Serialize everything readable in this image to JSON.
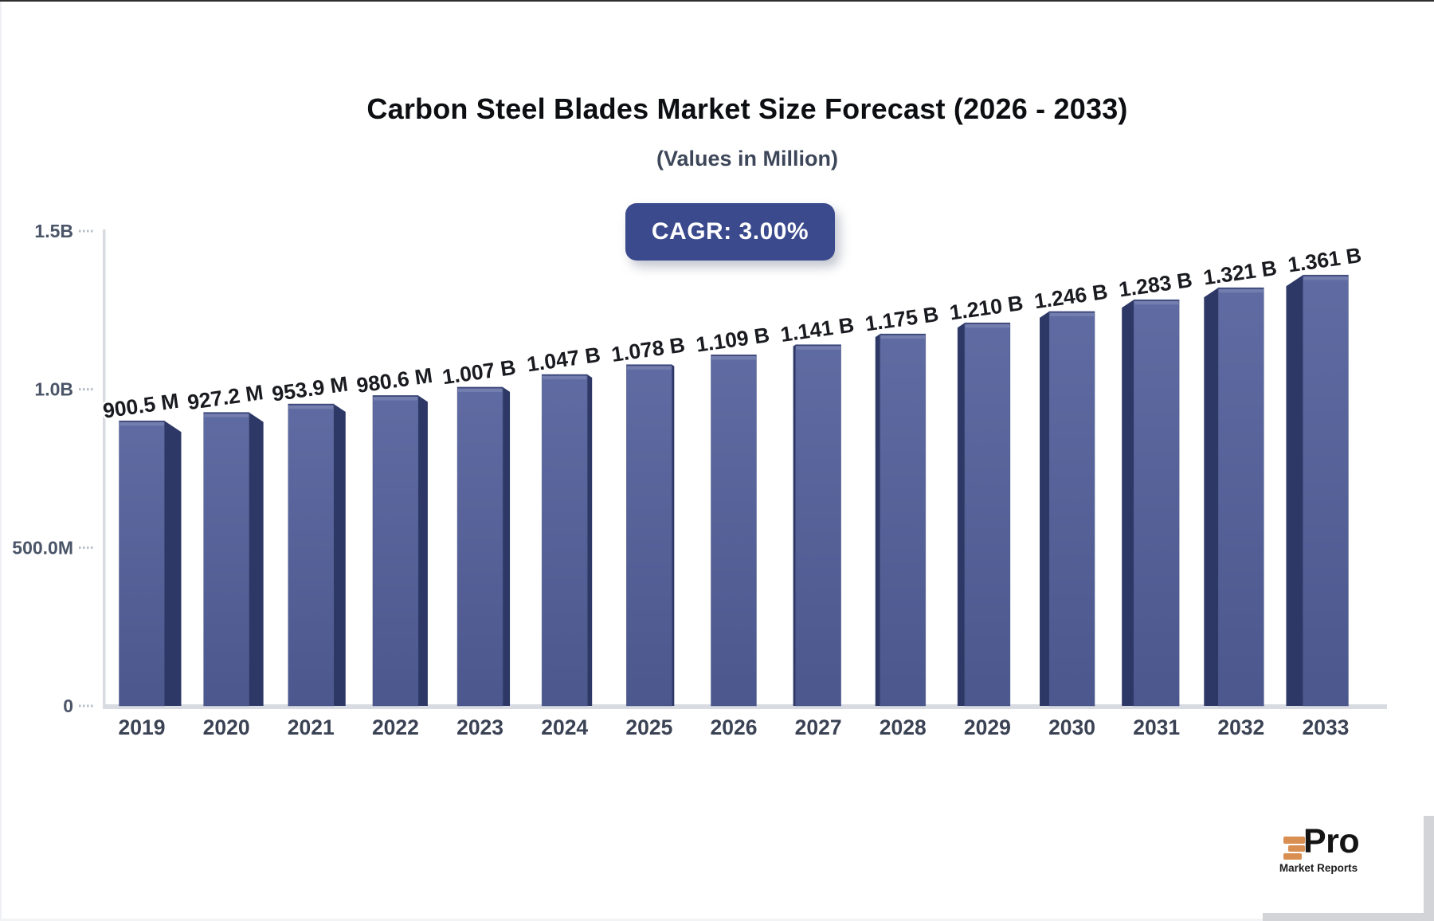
{
  "header": {
    "title": "Carbon Steel Blades Market Size Forecast (2026 - 2033)",
    "subtitle": "(Values in Million)",
    "cagr_label": "CAGR: 3.00%"
  },
  "chart_data": {
    "type": "bar",
    "title": "Carbon Steel Blades Market Size Forecast (2026 - 2033)",
    "subtitle": "(Values in Million)",
    "cagr": "3.00%",
    "categories": [
      "2019",
      "2020",
      "2021",
      "2022",
      "2023",
      "2024",
      "2025",
      "2026",
      "2027",
      "2028",
      "2029",
      "2030",
      "2031",
      "2032",
      "2033"
    ],
    "values_in_millions": [
      900.5,
      927.2,
      953.9,
      980.6,
      1007,
      1047,
      1078,
      1109,
      1141,
      1175,
      1210,
      1246,
      1283,
      1321,
      1361
    ],
    "bar_labels": [
      "900.5 M",
      "927.2 M",
      "953.9 M",
      "980.6 M",
      "1.007 B",
      "1.047 B",
      "1.078 B",
      "1.109 B",
      "1.141 B",
      "1.175 B",
      "1.210 B",
      "1.246 B",
      "1.283 B",
      "1.321 B",
      "1.361 B"
    ],
    "y_axis": {
      "min": 0,
      "max": 1500,
      "ticks": [
        {
          "value": 0,
          "label": "0"
        },
        {
          "value": 500,
          "label": "500.0M"
        },
        {
          "value": 1000,
          "label": "1.0B"
        },
        {
          "value": 1500,
          "label": "1.5B"
        }
      ]
    },
    "grid": false,
    "legend": false,
    "style_3d": true,
    "colors": {
      "bar_front_top": "#5f6ba2",
      "bar_front_bottom": "#4b578d",
      "bar_side": "#2d3866",
      "bar_top_highlight": "#737eae",
      "bar_top_line": "#3a4578",
      "axis_line": "#d9dbe2",
      "tick": "#b7bdc9",
      "axis_label": "#4b5568",
      "category_label": "#3a4254",
      "value_label": "#1a1b20",
      "badge_bg": "#3b4a8d",
      "badge_text": "#ffffff"
    }
  },
  "logo": {
    "title": "Pro",
    "subtitle": "Market Reports",
    "bar_color": "#d98e52",
    "text_color": "#141414"
  }
}
